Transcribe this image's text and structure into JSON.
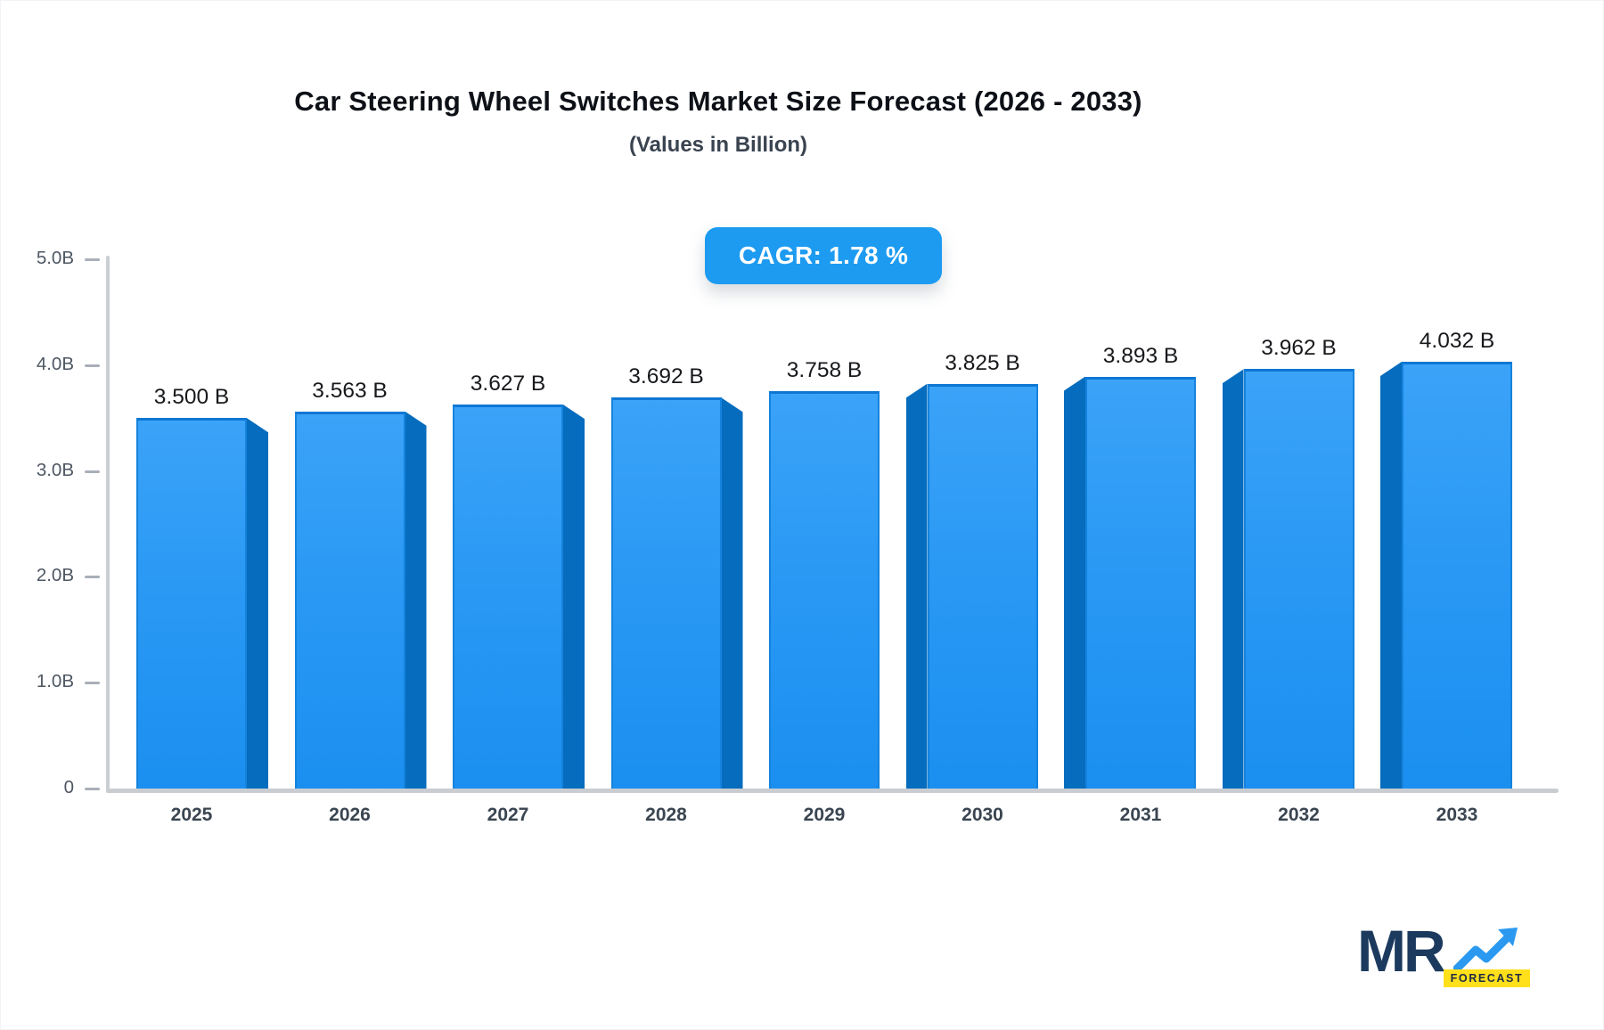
{
  "title": "Car Steering Wheel Switches Market Size Forecast (2026 - 2033)",
  "subtitle": "(Values in Billion)",
  "badge": {
    "label": "CAGR: 1.78 %"
  },
  "chart_data": {
    "type": "bar",
    "title": "Car Steering Wheel Switches Market Size Forecast (2026 - 2033)",
    "subtitle": "(Values in Billion)",
    "cagr_percent": 1.78,
    "unit": "Billion",
    "categories": [
      "2025",
      "2026",
      "2027",
      "2028",
      "2029",
      "2030",
      "2031",
      "2032",
      "2033"
    ],
    "values": [
      3.5,
      3.563,
      3.627,
      3.692,
      3.758,
      3.825,
      3.893,
      3.962,
      4.032
    ],
    "value_labels": [
      "3.500 B",
      "3.563 B",
      "3.627 B",
      "3.692 B",
      "3.758 B",
      "3.825 B",
      "3.893 B",
      "3.962 B",
      "4.032 B"
    ],
    "yticks": [
      {
        "value": 5,
        "label": "5.0B"
      },
      {
        "value": 4,
        "label": "4.0B"
      },
      {
        "value": 3,
        "label": "3.0B"
      },
      {
        "value": 2,
        "label": "2.0B"
      },
      {
        "value": 1,
        "label": "1.0B"
      },
      {
        "value": 0,
        "label": "0"
      }
    ],
    "ylim": [
      0,
      5
    ],
    "grid": false,
    "legend": false,
    "bar_face_color": "#2e9cf5",
    "bar_side_color": "#056cbe",
    "accent_color": "#1d9bf1"
  },
  "logo": {
    "text": "MR",
    "label": "FORECAST"
  }
}
